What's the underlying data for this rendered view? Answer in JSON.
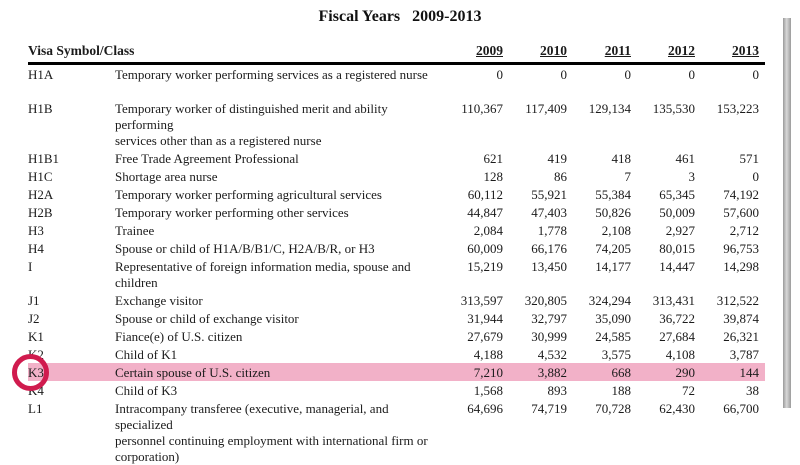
{
  "title": "Fiscal Years   2009-2013",
  "table": {
    "header_label": "Visa Symbol/Class",
    "years": [
      "2009",
      "2010",
      "2011",
      "2012",
      "2013"
    ],
    "rows": [
      {
        "symbol": "H1A",
        "lines": [
          "Temporary worker performing services as a registered nurse"
        ],
        "values": [
          "0",
          "0",
          "0",
          "0",
          "0"
        ],
        "gap_after": true
      },
      {
        "symbol": "H1B",
        "lines": [
          "Temporary worker of distinguished merit and ability performing",
          "services other than  as a registered nurse"
        ],
        "values": [
          "110,367",
          "117,409",
          "129,134",
          "135,530",
          "153,223"
        ]
      },
      {
        "symbol": "H1B1",
        "lines": [
          "Free Trade Agreement Professional"
        ],
        "values": [
          "621",
          "419",
          "418",
          "461",
          "571"
        ]
      },
      {
        "symbol": "H1C",
        "lines": [
          "Shortage area nurse"
        ],
        "values": [
          "128",
          "86",
          "7",
          "3",
          "0"
        ]
      },
      {
        "symbol": "H2A",
        "lines": [
          "Temporary worker performing agricultural services"
        ],
        "values": [
          "60,112",
          "55,921",
          "55,384",
          "65,345",
          "74,192"
        ]
      },
      {
        "symbol": "H2B",
        "lines": [
          "Temporary worker performing other services"
        ],
        "values": [
          "44,847",
          "47,403",
          "50,826",
          "50,009",
          "57,600"
        ]
      },
      {
        "symbol": "H3",
        "lines": [
          "Trainee"
        ],
        "values": [
          "2,084",
          "1,778",
          "2,108",
          "2,927",
          "2,712"
        ]
      },
      {
        "symbol": "H4",
        "lines": [
          "Spouse or child of H1A/B/B1/C, H2A/B/R, or H3"
        ],
        "values": [
          "60,009",
          "66,176",
          "74,205",
          "80,015",
          "96,753"
        ]
      },
      {
        "symbol": "I",
        "lines": [
          "Representative of foreign information media, spouse and",
          "children"
        ],
        "values": [
          "15,219",
          "13,450",
          "14,177",
          "14,447",
          "14,298"
        ]
      },
      {
        "symbol": "J1",
        "lines": [
          "Exchange visitor"
        ],
        "values": [
          "313,597",
          "320,805",
          "324,294",
          "313,431",
          "312,522"
        ]
      },
      {
        "symbol": "J2",
        "lines": [
          "Spouse or child of exchange visitor"
        ],
        "values": [
          "31,944",
          "32,797",
          "35,090",
          "36,722",
          "39,874"
        ]
      },
      {
        "symbol": "K1",
        "lines": [
          "Fiance(e) of U.S. citizen"
        ],
        "values": [
          "27,679",
          "30,999",
          "24,585",
          "27,684",
          "26,321"
        ]
      },
      {
        "symbol": "K2",
        "lines": [
          "Child of K1"
        ],
        "values": [
          "4,188",
          "4,532",
          "3,575",
          "4,108",
          "3,787"
        ]
      },
      {
        "symbol": "K3",
        "lines": [
          "Certain spouse of U.S. citizen"
        ],
        "values": [
          "7,210",
          "3,882",
          "668",
          "290",
          "144"
        ],
        "highlight": true,
        "circled": true
      },
      {
        "symbol": "K4",
        "lines": [
          "Child of K3"
        ],
        "values": [
          "1,568",
          "893",
          "188",
          "72",
          "38"
        ]
      },
      {
        "symbol": "L1",
        "lines": [
          "Intracompany transferee (executive, managerial, and specialized",
          "personnel continuing employment with international firm or",
          "corporation)"
        ],
        "values": [
          "64,696",
          "74,719",
          "70,728",
          "62,430",
          "66,700"
        ]
      }
    ]
  },
  "annotations": {
    "highlight_color": "#f2b1c8",
    "circle_color": "#d01b4e",
    "rule_color": "#000000"
  }
}
